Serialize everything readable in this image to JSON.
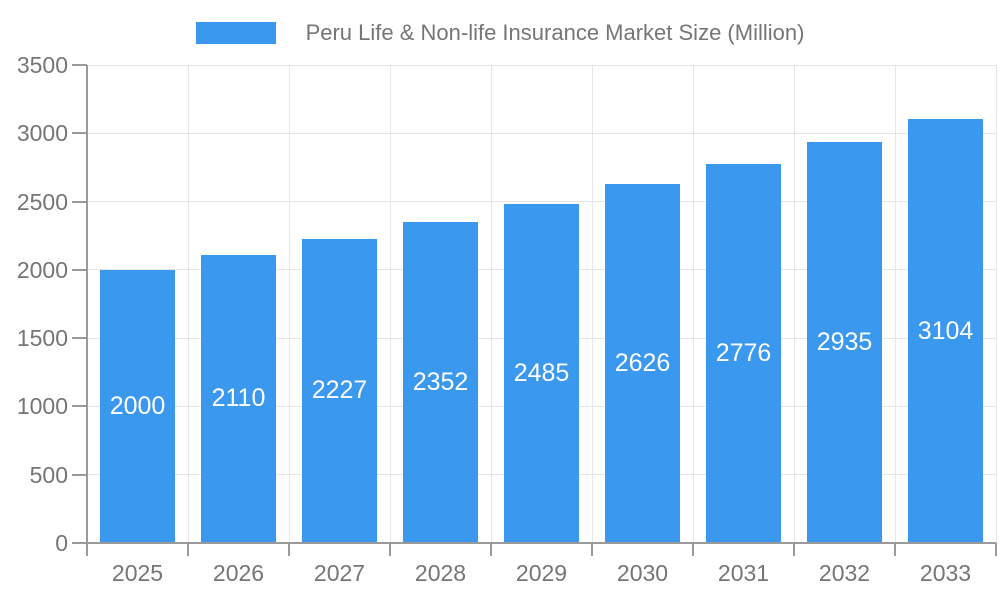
{
  "legend": {
    "label": "Peru Life & Non-life Insurance Market Size (Million)"
  },
  "colors": {
    "bar": "#3A99EE",
    "text": "#757575",
    "grid": "#e6e6e6",
    "axis": "#9a9a9a",
    "bar_label": "#ffffff",
    "background": "#ffffff"
  },
  "chart_data": {
    "type": "bar",
    "title": "Peru Life & Non-life Insurance Market Size (Million)",
    "categories": [
      "2025",
      "2026",
      "2027",
      "2028",
      "2029",
      "2030",
      "2031",
      "2032",
      "2033"
    ],
    "series": [
      {
        "name": "Peru Life & Non-life Insurance Market Size (Million)",
        "values": [
          2000,
          2110,
          2227,
          2352,
          2485,
          2626,
          2776,
          2935,
          3104
        ]
      }
    ],
    "xlabel": "",
    "ylabel": "",
    "ylim": [
      0,
      3500
    ],
    "yticks": [
      0,
      500,
      1000,
      1500,
      2000,
      2500,
      3000,
      3500
    ],
    "grid": true,
    "legend_position": "top",
    "bar_value_labels_inside": true
  }
}
